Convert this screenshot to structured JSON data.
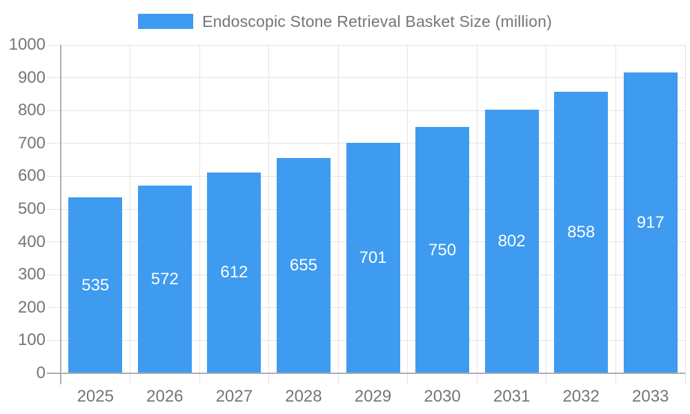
{
  "chart_data": {
    "type": "bar",
    "title": "Endoscopic Stone Retrieval Basket Size (million)",
    "categories": [
      "2025",
      "2026",
      "2027",
      "2028",
      "2029",
      "2030",
      "2031",
      "2032",
      "2033"
    ],
    "values": [
      535,
      572,
      612,
      655,
      701,
      750,
      802,
      858,
      917
    ],
    "xlabel": "",
    "ylabel": "",
    "ylim": [
      0,
      1000
    ],
    "ytick_step": 100,
    "yticks": [
      0,
      100,
      200,
      300,
      400,
      500,
      600,
      700,
      800,
      900,
      1000
    ],
    "grid": true,
    "legend_position": "top-center",
    "bar_label_position": "center",
    "colors": {
      "bar": "#3E9BF0",
      "gridline": "#E4E4E4",
      "axis_line": "#ADADAD",
      "axis_text": "#757575",
      "bar_label_text": "#FFFFFF",
      "background": "#FFFFFF"
    }
  }
}
